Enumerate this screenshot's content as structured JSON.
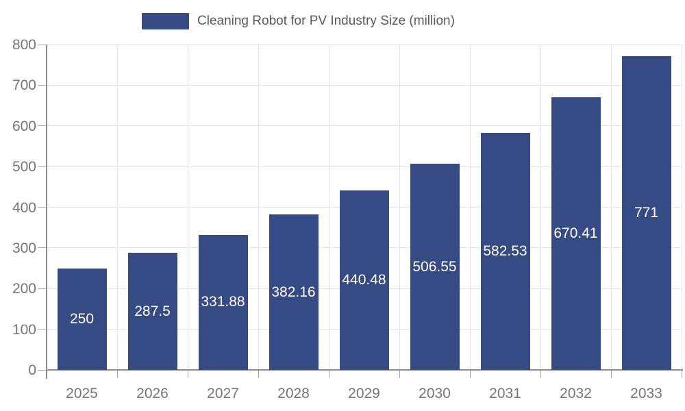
{
  "legend": {
    "label": "Cleaning Robot for PV Industry Size (million)"
  },
  "chart_data": {
    "type": "bar",
    "title": "Cleaning Robot for PV Industry Size (million)",
    "categories": [
      "2025",
      "2026",
      "2027",
      "2028",
      "2029",
      "2030",
      "2031",
      "2032",
      "2033"
    ],
    "values": [
      250,
      287.5,
      331.88,
      382.16,
      440.48,
      506.55,
      582.53,
      670.41,
      771
    ],
    "value_labels": [
      "250",
      "287.5",
      "331.88",
      "382.16",
      "440.48",
      "506.55",
      "582.53",
      "670.41",
      "771"
    ],
    "xlabel": "",
    "ylabel": "",
    "ylim": [
      0,
      800
    ],
    "ytick_interval": 100,
    "ytick_labels": [
      "0",
      "100",
      "200",
      "300",
      "400",
      "500",
      "600",
      "700",
      "800"
    ],
    "grid": true,
    "legend_position": "top-center",
    "colors": {
      "bar": "#364B83",
      "grid": "#e3e3e3",
      "axis": "#8c8c8c",
      "tick": "#a8a8a8",
      "tick_label": "#757575",
      "legend_text": "#595959",
      "value_label": "#ffffff",
      "background": "#ffffff"
    }
  }
}
